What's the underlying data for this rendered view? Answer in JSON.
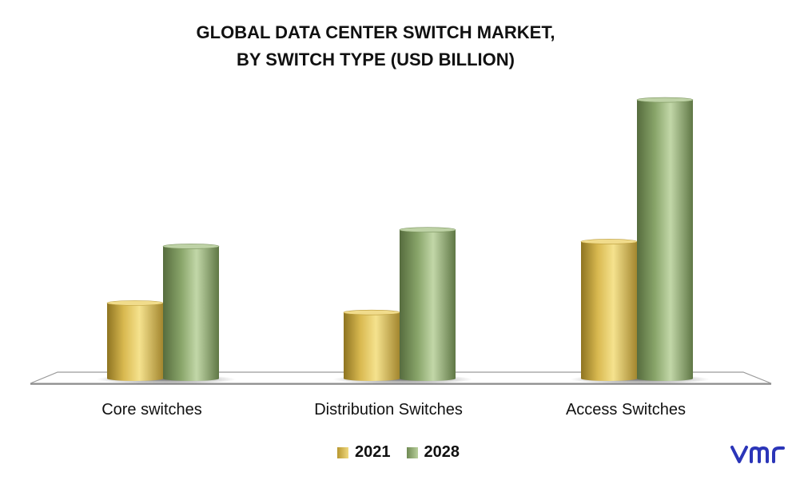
{
  "title_line1": "GLOBAL DATA CENTER SWITCH MARKET,",
  "title_line2": "BY SWITCH TYPE (USD BILLION)",
  "colors": {
    "series_2021": "#e3c45c",
    "series_2028": "#93ad74",
    "logo": "#2b35b8"
  },
  "logo_icon": "vmr-logo-icon",
  "chart_data": {
    "type": "bar",
    "title": "GLOBAL DATA CENTER SWITCH MARKET, BY SWITCH TYPE (USD BILLION)",
    "categories": [
      "Core switches",
      "Distribution Switches",
      "Access Switches"
    ],
    "series": [
      {
        "name": "2021",
        "values": [
          3.2,
          2.8,
          5.8
        ]
      },
      {
        "name": "2028",
        "values": [
          5.6,
          6.3,
          11.8
        ]
      }
    ],
    "xlabel": "",
    "ylabel": "",
    "ylim": [
      0,
      14
    ],
    "grid": false,
    "legend": "bottom-center",
    "style": "3d-cylinder"
  }
}
